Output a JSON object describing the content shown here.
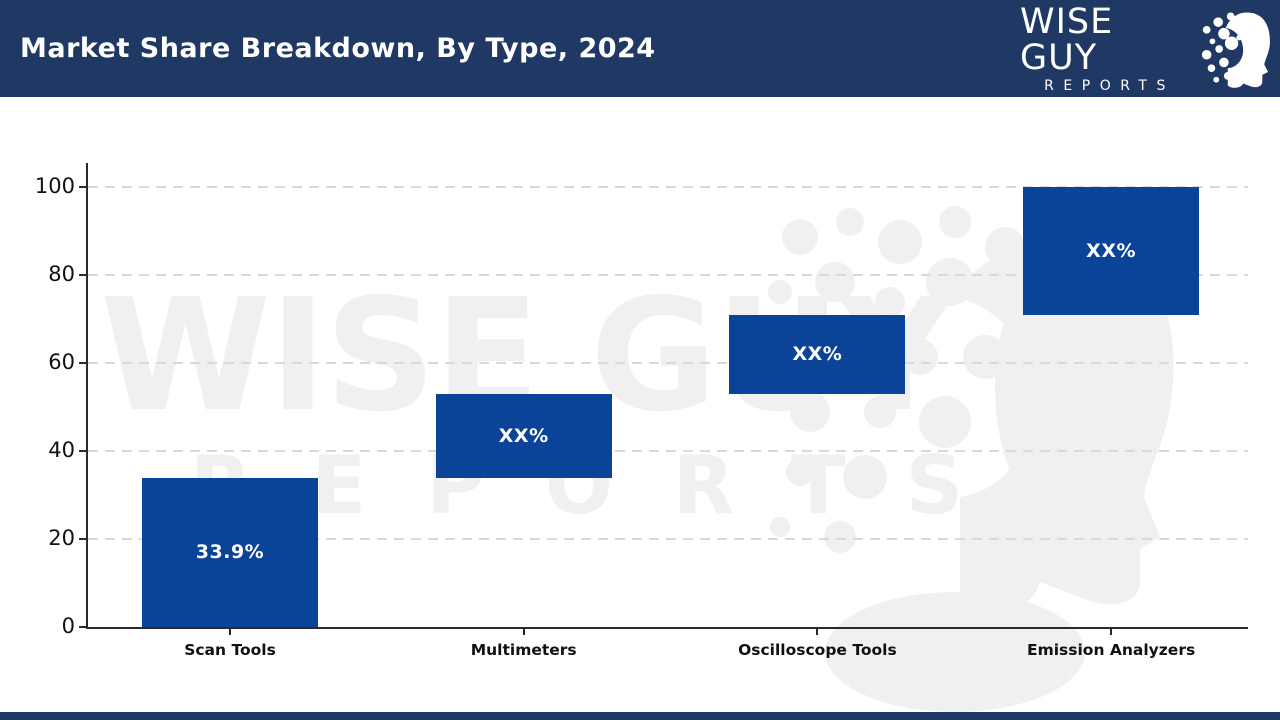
{
  "header": {
    "title": "Market Share Breakdown, By Type, 2024",
    "logo": {
      "wordmark": "WISE GUY",
      "subtext": "REPORTS"
    }
  },
  "watermark": {
    "line1": "WISE GUY",
    "line2": "REPORTS"
  },
  "chart_data": {
    "type": "bar",
    "subtype": "waterfall",
    "title": "Market Share Breakdown, By Type, 2024",
    "categories": [
      "Scan Tools",
      "Multimeters",
      "Oscilloscope Tools",
      "Emission Analyzers"
    ],
    "segments": [
      {
        "category": "Scan Tools",
        "start": 0,
        "end": 33.9,
        "label": "33.9%"
      },
      {
        "category": "Multimeters",
        "start": 33.9,
        "end": 53,
        "label": "XX%"
      },
      {
        "category": "Oscilloscope Tools",
        "start": 53,
        "end": 71,
        "label": "XX%"
      },
      {
        "category": "Emission Analyzers",
        "start": 71,
        "end": 100,
        "label": "XX%"
      }
    ],
    "xlabel": "",
    "ylabel": "",
    "ylim": [
      0,
      100
    ],
    "yticks": [
      0,
      20,
      40,
      60,
      80,
      100
    ],
    "grid": "horizontal-dashed",
    "legend": "none",
    "bar_color": "#0a4397",
    "bar_label_color": "#ffffff"
  },
  "colors": {
    "header_bg": "#1f3864",
    "footer_bar": "#1f3864",
    "axis": "#2a2a2a",
    "gridline": "#d9d9d9",
    "watermark": "#f0f0f3",
    "background": "#ffffff"
  }
}
